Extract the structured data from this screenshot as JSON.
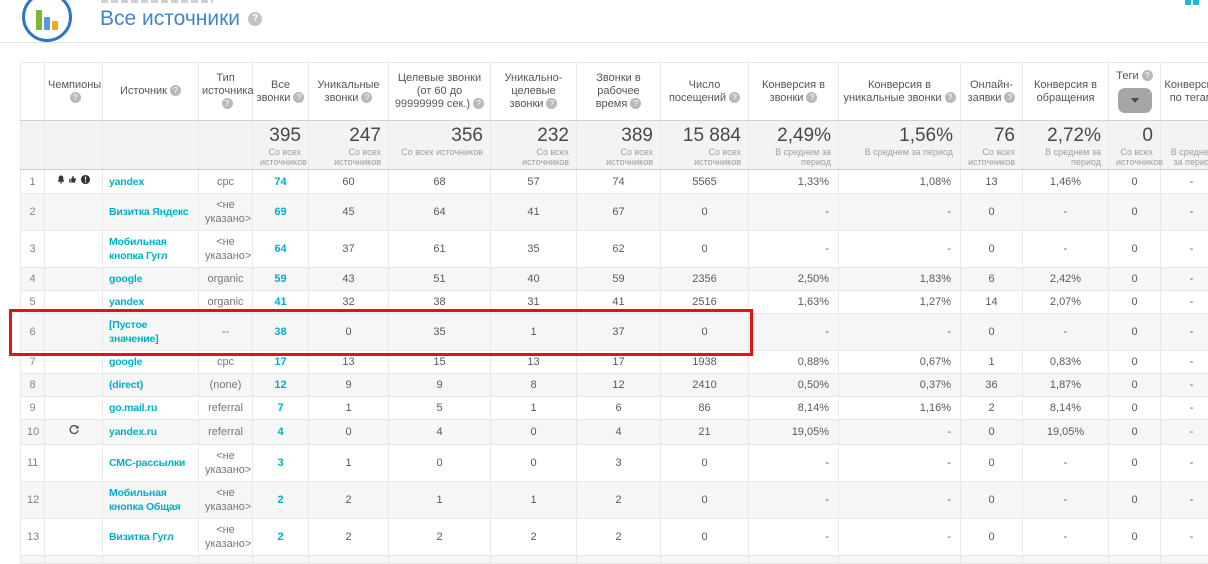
{
  "header": {
    "title": "Все источники",
    "logo": "bar-chart-logo"
  },
  "annotation": {
    "color": "#e11414"
  },
  "colors": {
    "accent_teal": "#00b1c6",
    "title_blue": "#4285c8",
    "highlight_red": "#e11414"
  },
  "table": {
    "columns": [
      {
        "label": ""
      },
      {
        "label": "Чемпионы",
        "help": true
      },
      {
        "label": "Источник",
        "help": true
      },
      {
        "label": "Тип источника",
        "help": true
      },
      {
        "label": "Все звонки",
        "help": true
      },
      {
        "label": "Уникальные звонки",
        "help": true
      },
      {
        "label": "Целевые звонки (от 60 до 99999999 сек.)",
        "help": true
      },
      {
        "label": "Уникально-целевые звонки",
        "help": true
      },
      {
        "label": "Звонки в рабочее время",
        "help": true
      },
      {
        "label": "Число посещений",
        "help": true
      },
      {
        "label": "Конверсия в звонки",
        "help": true
      },
      {
        "label": "Конверсия в уникальные звонки",
        "help": true
      },
      {
        "label": "Онлайн-заявки",
        "help": true
      },
      {
        "label": "Конверсия в обращения",
        "help": false
      },
      {
        "label": "Теги",
        "help": true,
        "has_filter_button": true
      },
      {
        "label": "Конверсия по тегам",
        "help": false
      }
    ],
    "summary": [
      {
        "value": "395",
        "note": "Со всех источников"
      },
      {
        "value": "247",
        "note": "Со всех источников"
      },
      {
        "value": "356",
        "note": "Со всех источников"
      },
      {
        "value": "232",
        "note": "Со всех источников"
      },
      {
        "value": "389",
        "note": "Со всех источников"
      },
      {
        "value": "15 884",
        "note": "Со всех источников"
      },
      {
        "value": "2,49%",
        "note": "В среднем за период"
      },
      {
        "value": "1,56%",
        "note": "В среднем за период"
      },
      {
        "value": "76",
        "note": "Со всех источников"
      },
      {
        "value": "2,72%",
        "note": "В среднем за период"
      },
      {
        "value": "0",
        "note": "Со всех источников"
      },
      {
        "value": "-",
        "note": "В среднем за период"
      }
    ],
    "rows": [
      {
        "num": "1",
        "champions": [
          "bell-icon",
          "thumbs-up-icon",
          "alert-icon"
        ],
        "source": "yandex",
        "type": "cpc",
        "highlighted": false,
        "values": [
          "74",
          "60",
          "68",
          "57",
          "74",
          "5565",
          "1,33%",
          "1,08%",
          "13",
          "1,46%",
          "0",
          "-"
        ]
      },
      {
        "num": "2",
        "champions": [],
        "source": "Визитка Яндекс",
        "type": "<не указано>",
        "highlighted": false,
        "values": [
          "69",
          "45",
          "64",
          "41",
          "67",
          "0",
          "-",
          "-",
          "0",
          "-",
          "0",
          "-"
        ]
      },
      {
        "num": "3",
        "champions": [],
        "source": "Мобильная кнопка Гугл",
        "type": "<не указано>",
        "highlighted": false,
        "values": [
          "64",
          "37",
          "61",
          "35",
          "62",
          "0",
          "-",
          "-",
          "0",
          "-",
          "0",
          "-"
        ]
      },
      {
        "num": "4",
        "champions": [],
        "source": "google",
        "type": "organic",
        "highlighted": false,
        "values": [
          "59",
          "43",
          "51",
          "40",
          "59",
          "2356",
          "2,50%",
          "1,83%",
          "6",
          "2,42%",
          "0",
          "-"
        ]
      },
      {
        "num": "5",
        "champions": [],
        "source": "yandex",
        "type": "organic",
        "highlighted": false,
        "values": [
          "41",
          "32",
          "38",
          "31",
          "41",
          "2516",
          "1,63%",
          "1,27%",
          "14",
          "2,07%",
          "0",
          "-"
        ]
      },
      {
        "num": "6",
        "champions": [],
        "source": "[Пустое значение]",
        "type": "--",
        "highlighted": true,
        "values": [
          "38",
          "0",
          "35",
          "1",
          "37",
          "0",
          "-",
          "-",
          "0",
          "-",
          "0",
          "-"
        ]
      },
      {
        "num": "7",
        "champions": [],
        "source": "google",
        "type": "cpc",
        "highlighted": false,
        "values": [
          "17",
          "13",
          "15",
          "13",
          "17",
          "1938",
          "0,88%",
          "0,67%",
          "1",
          "0,83%",
          "0",
          "-"
        ]
      },
      {
        "num": "8",
        "champions": [],
        "source": "(direct)",
        "type": "(none)",
        "highlighted": false,
        "values": [
          "12",
          "9",
          "9",
          "8",
          "12",
          "2410",
          "0,50%",
          "0,37%",
          "36",
          "1,87%",
          "0",
          "-"
        ]
      },
      {
        "num": "9",
        "champions": [],
        "source": "go.mail.ru",
        "type": "referral",
        "highlighted": false,
        "values": [
          "7",
          "1",
          "5",
          "1",
          "6",
          "86",
          "8,14%",
          "1,16%",
          "2",
          "8,14%",
          "0",
          "-"
        ]
      },
      {
        "num": "10",
        "champions": [
          "refresh-icon"
        ],
        "source": "yandex.ru",
        "type": "referral",
        "highlighted": false,
        "values": [
          "4",
          "0",
          "4",
          "0",
          "4",
          "21",
          "19,05%",
          "-",
          "0",
          "19,05%",
          "0",
          "-"
        ]
      },
      {
        "num": "11",
        "champions": [],
        "source": "СМС-рассылки",
        "type": "<не указано>",
        "highlighted": false,
        "values": [
          "3",
          "1",
          "0",
          "0",
          "3",
          "0",
          "-",
          "-",
          "0",
          "-",
          "0",
          "-"
        ]
      },
      {
        "num": "12",
        "champions": [],
        "source": "Мобильная кнопка Общая",
        "type": "<не указано>",
        "highlighted": false,
        "values": [
          "2",
          "2",
          "1",
          "1",
          "2",
          "0",
          "-",
          "-",
          "0",
          "-",
          "0",
          "-"
        ]
      },
      {
        "num": "13",
        "champions": [],
        "source": "Визитка Гугл",
        "type": "<не указано>",
        "highlighted": false,
        "values": [
          "2",
          "2",
          "2",
          "2",
          "2",
          "0",
          "-",
          "-",
          "0",
          "-",
          "0",
          "-"
        ]
      }
    ]
  }
}
